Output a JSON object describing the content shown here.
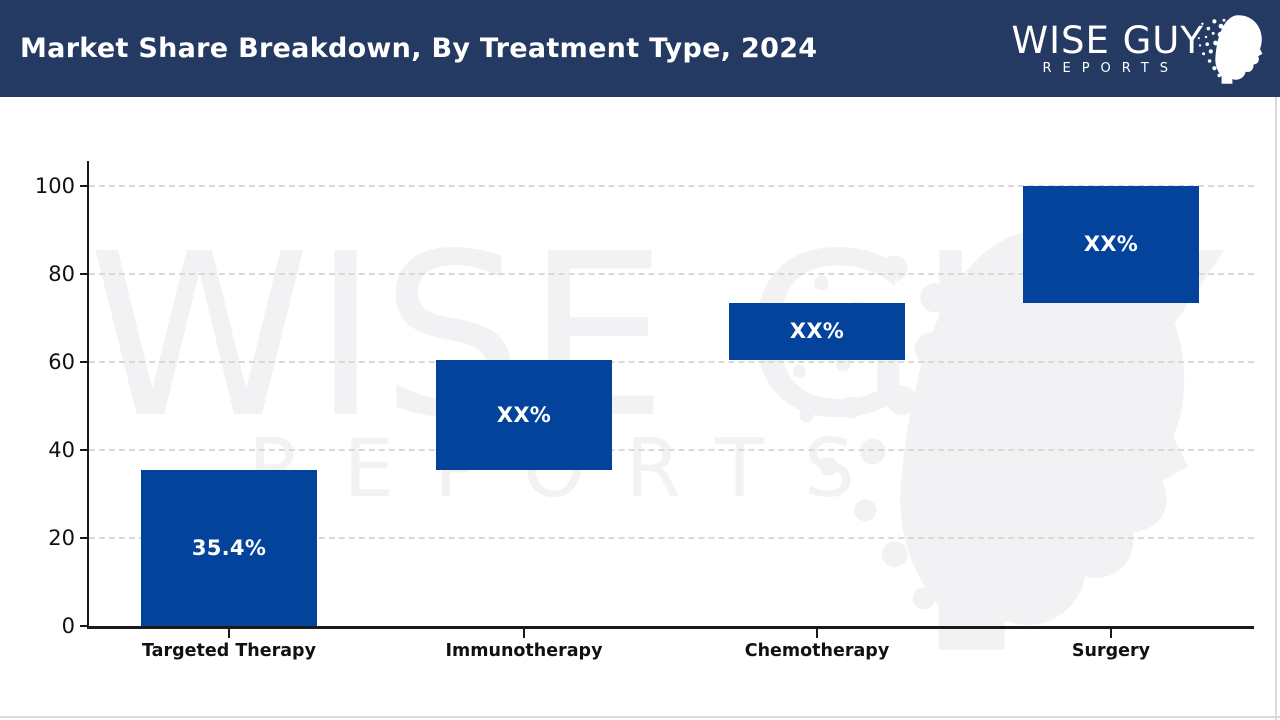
{
  "header": {
    "title": "Market Share Breakdown, By Treatment Type, 2024",
    "logo": {
      "line1": "WISE GUY",
      "line2": "REPORTS"
    }
  },
  "watermark": {
    "line1": "WISE GUY",
    "line2": "REPORTS"
  },
  "colors": {
    "header_bg": "#243a62",
    "bar": "#04439c",
    "bar_label": "#ffffff",
    "axis": "#1a1a1a",
    "gridline": "#d9d9d9",
    "watermark": "#f2f2f5"
  },
  "chart_data": {
    "type": "bar",
    "subtype": "waterfall",
    "title": "Market Share Breakdown, By Treatment Type, 2024",
    "categories": [
      "Targeted Therapy",
      "Immunotherapy",
      "Chemotherapy",
      "Surgery"
    ],
    "values": [
      35.4,
      25.1,
      13.0,
      26.5
    ],
    "cumulative": [
      35.4,
      60.5,
      73.5,
      100
    ],
    "segments": [
      {
        "category": "Targeted Therapy",
        "start": 0,
        "end": 35.4,
        "label": "35.4%"
      },
      {
        "category": "Immunotherapy",
        "start": 35.4,
        "end": 60.5,
        "label": "XX%"
      },
      {
        "category": "Chemotherapy",
        "start": 60.5,
        "end": 73.5,
        "label": "XX%"
      },
      {
        "category": "Surgery",
        "start": 73.5,
        "end": 100,
        "label": "XX%"
      }
    ],
    "bar_color": "#04439c",
    "xlabel": "",
    "ylabel": "",
    "ylim": [
      0,
      100
    ],
    "yticks": [
      0,
      20,
      40,
      60,
      80,
      100
    ],
    "grid": "dashed-horizontal",
    "legend": false
  }
}
